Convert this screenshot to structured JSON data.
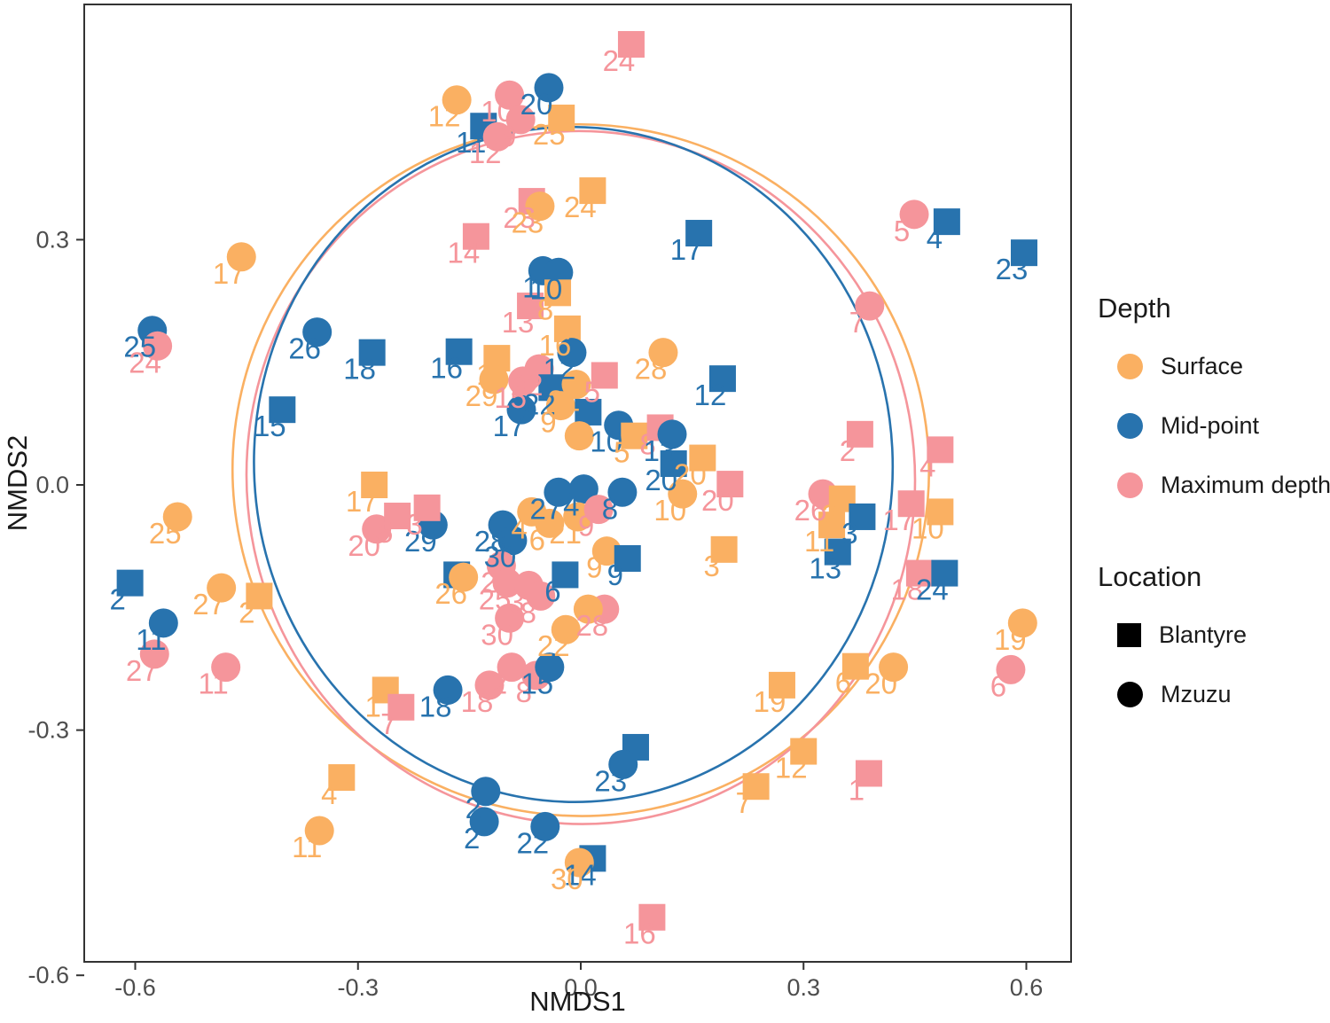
{
  "chart_data": {
    "type": "scatter",
    "title": "",
    "xlabel": "NMDS1",
    "ylabel": "NMDS2",
    "xlim": [
      -0.669,
      0.66
    ],
    "ylim": [
      -0.583,
      0.588
    ],
    "x_ticks": [
      {
        "v": -0.6,
        "label": "-0.6"
      },
      {
        "v": -0.3,
        "label": "-0.3"
      },
      {
        "v": 0.0,
        "label": "0.0"
      },
      {
        "v": 0.3,
        "label": "0.3"
      },
      {
        "v": 0.6,
        "label": "0.6"
      }
    ],
    "y_ticks": [
      {
        "v": 0.3,
        "label": "0.3"
      },
      {
        "v": 0.0,
        "label": "0.0"
      },
      {
        "v": -0.3,
        "label": "-0.3"
      },
      {
        "v": -0.6,
        "label": "-0.6"
      }
    ],
    "grid": false,
    "colors": {
      "surface": "#FAB062",
      "mid": "#2873AE",
      "max": "#F5959B",
      "axis": "#333333",
      "tick_text": "#4d4d4d"
    },
    "legend_position": "right",
    "ellipses": [
      {
        "group": "Surface",
        "color": "#FAB062",
        "cx": 0.0,
        "cy": 0.018,
        "rx": 0.469,
        "ry": 0.423,
        "rot": 10
      },
      {
        "group": "Maximum depth",
        "color": "#F5959B",
        "cx": 0.0,
        "cy": 0.009,
        "rx": 0.45,
        "ry": 0.424,
        "rot": -5
      },
      {
        "group": "Mid-point",
        "color": "#2873AE",
        "cx": -0.01,
        "cy": 0.025,
        "rx": 0.43,
        "ry": 0.413,
        "rot": -3
      }
    ],
    "points": [
      {
        "n": "24",
        "d": "x",
        "l": "B",
        "x": 0.068,
        "y": 0.539
      },
      {
        "n": "12",
        "d": "s",
        "l": "Z",
        "x": -0.167,
        "y": 0.471
      },
      {
        "n": "10",
        "d": "x",
        "l": "Z",
        "x": -0.096,
        "y": 0.477
      },
      {
        "n": "20",
        "d": "m",
        "l": "Z",
        "x": -0.043,
        "y": 0.486
      },
      {
        "n": "11",
        "d": "m",
        "l": "B",
        "x": -0.131,
        "y": 0.439
      },
      {
        "n": "9",
        "d": "x",
        "l": "Z",
        "x": -0.081,
        "y": 0.447
      },
      {
        "n": "12",
        "d": "x",
        "l": "Z",
        "x": -0.112,
        "y": 0.426
      },
      {
        "n": "25",
        "d": "s",
        "l": "B",
        "x": -0.026,
        "y": 0.449
      },
      {
        "n": "24",
        "d": "s",
        "l": "B",
        "x": 0.016,
        "y": 0.36
      },
      {
        "n": "23",
        "d": "x",
        "l": "B",
        "x": -0.066,
        "y": 0.347
      },
      {
        "n": "23",
        "d": "s",
        "l": "Z",
        "x": -0.055,
        "y": 0.341
      },
      {
        "n": "14",
        "d": "x",
        "l": "B",
        "x": -0.141,
        "y": 0.304
      },
      {
        "n": "17",
        "d": "m",
        "l": "B",
        "x": 0.159,
        "y": 0.308
      },
      {
        "n": "5",
        "d": "x",
        "l": "Z",
        "x": 0.449,
        "y": 0.331
      },
      {
        "n": "4",
        "d": "m",
        "l": "B",
        "x": 0.493,
        "y": 0.322
      },
      {
        "n": "23",
        "d": "m",
        "l": "B",
        "x": 0.597,
        "y": 0.284
      },
      {
        "n": "7",
        "d": "x",
        "l": "Z",
        "x": 0.389,
        "y": 0.219
      },
      {
        "n": "17",
        "d": "s",
        "l": "Z",
        "x": -0.457,
        "y": 0.279
      },
      {
        "n": "25",
        "d": "m",
        "l": "Z",
        "x": -0.577,
        "y": 0.189
      },
      {
        "n": "24",
        "d": "x",
        "l": "Z",
        "x": -0.57,
        "y": 0.17
      },
      {
        "n": "26",
        "d": "m",
        "l": "Z",
        "x": -0.355,
        "y": 0.187
      },
      {
        "n": "18",
        "d": "m",
        "l": "B",
        "x": -0.281,
        "y": 0.162
      },
      {
        "n": "15",
        "d": "m",
        "l": "B",
        "x": -0.402,
        "y": 0.092
      },
      {
        "n": "16",
        "d": "m",
        "l": "B",
        "x": -0.164,
        "y": 0.163
      },
      {
        "n": "28",
        "d": "s",
        "l": "Z",
        "x": 0.111,
        "y": 0.162
      },
      {
        "n": "12",
        "d": "m",
        "l": "B",
        "x": 0.191,
        "y": 0.13
      },
      {
        "n": "1",
        "d": "m",
        "l": "Z",
        "x": -0.051,
        "y": 0.262
      },
      {
        "n": "10",
        "d": "m",
        "l": "Z",
        "x": -0.03,
        "y": 0.26
      },
      {
        "n": "13",
        "d": "x",
        "l": "B",
        "x": -0.068,
        "y": 0.219
      },
      {
        "n": "8",
        "d": "s",
        "l": "B",
        "x": -0.031,
        "y": 0.235
      },
      {
        "n": "16",
        "d": "s",
        "l": "B",
        "x": -0.018,
        "y": 0.191
      },
      {
        "n": "12",
        "d": "m",
        "l": "Z",
        "x": -0.012,
        "y": 0.162
      },
      {
        "n": "1",
        "d": "s",
        "l": "B",
        "x": -0.113,
        "y": 0.155
      },
      {
        "n": "29",
        "d": "s",
        "l": "Z",
        "x": -0.117,
        "y": 0.129
      },
      {
        "n": "22",
        "d": "x",
        "l": "Z",
        "x": -0.056,
        "y": 0.142
      },
      {
        "n": "15",
        "d": "x",
        "l": "Z",
        "x": -0.078,
        "y": 0.127
      },
      {
        "n": "22",
        "d": "m",
        "l": "B",
        "x": -0.039,
        "y": 0.119
      },
      {
        "n": "21",
        "d": "s",
        "l": "Z",
        "x": -0.006,
        "y": 0.123
      },
      {
        "n": "9",
        "d": "s",
        "l": "Z",
        "x": -0.027,
        "y": 0.097
      },
      {
        "n": "17",
        "d": "m",
        "l": "Z",
        "x": -0.08,
        "y": 0.092
      },
      {
        "n": "5",
        "d": "x",
        "l": "B",
        "x": 0.032,
        "y": 0.134
      },
      {
        "n": "",
        "d": "m",
        "l": "B",
        "x": 0.01,
        "y": 0.089
      },
      {
        "n": "10",
        "d": "m",
        "l": "Z",
        "x": 0.051,
        "y": 0.073
      },
      {
        "n": "5",
        "d": "s",
        "l": "B",
        "x": 0.072,
        "y": 0.06
      },
      {
        "n": "",
        "d": "s",
        "l": "Z",
        "x": -0.002,
        "y": 0.06
      },
      {
        "n": "8",
        "d": "x",
        "l": "B",
        "x": 0.107,
        "y": 0.07
      },
      {
        "n": "13",
        "d": "m",
        "l": "Z",
        "x": 0.123,
        "y": 0.062
      },
      {
        "n": "20",
        "d": "m",
        "l": "B",
        "x": 0.125,
        "y": 0.026
      },
      {
        "n": "20",
        "d": "s",
        "l": "B",
        "x": 0.164,
        "y": 0.033
      },
      {
        "n": "20",
        "d": "x",
        "l": "B",
        "x": 0.201,
        "y": 0.001
      },
      {
        "n": "10",
        "d": "s",
        "l": "Z",
        "x": 0.137,
        "y": -0.011
      },
      {
        "n": "3",
        "d": "s",
        "l": "B",
        "x": 0.193,
        "y": -0.079
      },
      {
        "n": "27",
        "d": "m",
        "l": "Z",
        "x": -0.03,
        "y": -0.009
      },
      {
        "n": "4",
        "d": "m",
        "l": "Z",
        "x": 0.004,
        "y": -0.005
      },
      {
        "n": "8",
        "d": "m",
        "l": "Z",
        "x": 0.056,
        "y": -0.009
      },
      {
        "n": "4",
        "d": "s",
        "l": "Z",
        "x": -0.066,
        "y": -0.033
      },
      {
        "n": "6",
        "d": "s",
        "l": "Z",
        "x": -0.042,
        "y": -0.047
      },
      {
        "n": "21",
        "d": "s",
        "l": "Z",
        "x": -0.004,
        "y": -0.039
      },
      {
        "n": "9",
        "d": "x",
        "l": "Z",
        "x": 0.024,
        "y": -0.03
      },
      {
        "n": "28",
        "d": "m",
        "l": "Z",
        "x": -0.105,
        "y": -0.049
      },
      {
        "n": "30",
        "d": "m",
        "l": "Z",
        "x": -0.092,
        "y": -0.068
      },
      {
        "n": "2",
        "d": "x",
        "l": "Z",
        "x": -0.107,
        "y": -0.099
      },
      {
        "n": "25",
        "d": "x",
        "l": "Z",
        "x": -0.099,
        "y": -0.12
      },
      {
        "n": "3",
        "d": "x",
        "l": "Z",
        "x": -0.07,
        "y": -0.123
      },
      {
        "n": "8",
        "d": "x",
        "l": "Z",
        "x": -0.054,
        "y": -0.136
      },
      {
        "n": "30",
        "d": "x",
        "l": "Z",
        "x": -0.096,
        "y": -0.163
      },
      {
        "n": "28",
        "d": "x",
        "l": "Z",
        "x": 0.032,
        "y": -0.152
      },
      {
        "n": "",
        "d": "s",
        "l": "Z",
        "x": 0.01,
        "y": -0.152
      },
      {
        "n": "22",
        "d": "s",
        "l": "Z",
        "x": -0.02,
        "y": -0.177
      },
      {
        "n": "",
        "d": "m",
        "l": "B",
        "x": -0.167,
        "y": -0.11
      },
      {
        "n": "26",
        "d": "s",
        "l": "Z",
        "x": -0.158,
        "y": -0.113
      },
      {
        "n": "29",
        "d": "m",
        "l": "Z",
        "x": -0.199,
        "y": -0.049
      },
      {
        "n": "20",
        "d": "x",
        "l": "Z",
        "x": -0.275,
        "y": -0.054
      },
      {
        "n": "5",
        "d": "x",
        "l": "B",
        "x": -0.247,
        "y": -0.038
      },
      {
        "n": "3",
        "d": "x",
        "l": "B",
        "x": -0.207,
        "y": -0.028
      },
      {
        "n": "17",
        "d": "s",
        "l": "B",
        "x": -0.278,
        "y": 0.0
      },
      {
        "n": "6",
        "d": "m",
        "l": "B",
        "x": -0.021,
        "y": -0.11
      },
      {
        "n": "9",
        "d": "s",
        "l": "Z",
        "x": 0.035,
        "y": -0.081
      },
      {
        "n": "9",
        "d": "m",
        "l": "B",
        "x": 0.063,
        "y": -0.09
      },
      {
        "n": "26",
        "d": "x",
        "l": "Z",
        "x": 0.326,
        "y": -0.011
      },
      {
        "n": "2",
        "d": "s",
        "l": "B",
        "x": 0.352,
        "y": -0.017
      },
      {
        "n": "11",
        "d": "s",
        "l": "B",
        "x": 0.338,
        "y": -0.049
      },
      {
        "n": "3",
        "d": "m",
        "l": "B",
        "x": 0.379,
        "y": -0.039
      },
      {
        "n": "13",
        "d": "m",
        "l": "B",
        "x": 0.346,
        "y": -0.082
      },
      {
        "n": "17",
        "d": "x",
        "l": "B",
        "x": 0.445,
        "y": -0.023
      },
      {
        "n": "10",
        "d": "s",
        "l": "B",
        "x": 0.484,
        "y": -0.033
      },
      {
        "n": "18",
        "d": "x",
        "l": "B",
        "x": 0.456,
        "y": -0.108
      },
      {
        "n": "24",
        "d": "m",
        "l": "B",
        "x": 0.49,
        "y": -0.108
      },
      {
        "n": "2",
        "d": "x",
        "l": "B",
        "x": 0.376,
        "y": 0.062
      },
      {
        "n": "4",
        "d": "x",
        "l": "B",
        "x": 0.484,
        "y": 0.043
      },
      {
        "n": "19",
        "d": "s",
        "l": "Z",
        "x": 0.595,
        "y": -0.169
      },
      {
        "n": "6",
        "d": "x",
        "l": "Z",
        "x": 0.579,
        "y": -0.226
      },
      {
        "n": "6",
        "d": "s",
        "l": "B",
        "x": 0.37,
        "y": -0.222
      },
      {
        "n": "20",
        "d": "s",
        "l": "Z",
        "x": 0.421,
        "y": -0.223
      },
      {
        "n": "19",
        "d": "s",
        "l": "B",
        "x": 0.271,
        "y": -0.245
      },
      {
        "n": "12",
        "d": "s",
        "l": "B",
        "x": 0.3,
        "y": -0.326
      },
      {
        "n": "7",
        "d": "s",
        "l": "B",
        "x": 0.236,
        "y": -0.369
      },
      {
        "n": "1",
        "d": "x",
        "l": "B",
        "x": 0.388,
        "y": -0.353
      },
      {
        "n": "16",
        "d": "x",
        "l": "B",
        "x": 0.096,
        "y": -0.529
      },
      {
        "n": "",
        "d": "m",
        "l": "B",
        "x": 0.074,
        "y": -0.321
      },
      {
        "n": "23",
        "d": "m",
        "l": "Z",
        "x": 0.057,
        "y": -0.342
      },
      {
        "n": "2",
        "d": "m",
        "l": "Z",
        "x": -0.128,
        "y": -0.375
      },
      {
        "n": "2",
        "d": "m",
        "l": "Z",
        "x": -0.13,
        "y": -0.412
      },
      {
        "n": "22",
        "d": "m",
        "l": "Z",
        "x": -0.048,
        "y": -0.418
      },
      {
        "n": "14",
        "d": "m",
        "l": "B",
        "x": 0.016,
        "y": -0.457
      },
      {
        "n": "30",
        "d": "s",
        "l": "Z",
        "x": -0.002,
        "y": -0.462
      },
      {
        "n": "25",
        "d": "s",
        "l": "Z",
        "x": -0.543,
        "y": -0.039
      },
      {
        "n": "2",
        "d": "m",
        "l": "B",
        "x": -0.607,
        "y": -0.12
      },
      {
        "n": "11",
        "d": "m",
        "l": "Z",
        "x": -0.562,
        "y": -0.169
      },
      {
        "n": "27",
        "d": "x",
        "l": "Z",
        "x": -0.574,
        "y": -0.207
      },
      {
        "n": "11",
        "d": "x",
        "l": "Z",
        "x": -0.478,
        "y": -0.223
      },
      {
        "n": "27",
        "d": "s",
        "l": "Z",
        "x": -0.484,
        "y": -0.126
      },
      {
        "n": "2",
        "d": "s",
        "l": "B",
        "x": -0.433,
        "y": -0.136
      },
      {
        "n": "4",
        "d": "s",
        "l": "B",
        "x": -0.322,
        "y": -0.358
      },
      {
        "n": "11",
        "d": "s",
        "l": "Z",
        "x": -0.352,
        "y": -0.423
      },
      {
        "n": "1",
        "d": "s",
        "l": "B",
        "x": -0.263,
        "y": -0.251
      },
      {
        "n": "7",
        "d": "x",
        "l": "B",
        "x": -0.242,
        "y": -0.272
      },
      {
        "n": "18",
        "d": "m",
        "l": "Z",
        "x": -0.179,
        "y": -0.251
      },
      {
        "n": "18",
        "d": "x",
        "l": "Z",
        "x": -0.123,
        "y": -0.245
      },
      {
        "n": "2",
        "d": "x",
        "l": "Z",
        "x": -0.093,
        "y": -0.223
      },
      {
        "n": "8",
        "d": "x",
        "l": "Z",
        "x": -0.06,
        "y": -0.233
      },
      {
        "n": "15",
        "d": "m",
        "l": "Z",
        "x": -0.042,
        "y": -0.223
      }
    ]
  },
  "legend": {
    "depth": {
      "title": "Depth",
      "items": [
        {
          "label": "Surface",
          "color": "#FAB062"
        },
        {
          "label": "Mid-point",
          "color": "#2873AE"
        },
        {
          "label": "Maximum depth",
          "color": "#F5959B"
        }
      ]
    },
    "location": {
      "title": "Location",
      "items": [
        {
          "label": "Blantyre",
          "shape": "square"
        },
        {
          "label": "Mzuzu",
          "shape": "circle"
        }
      ]
    }
  }
}
